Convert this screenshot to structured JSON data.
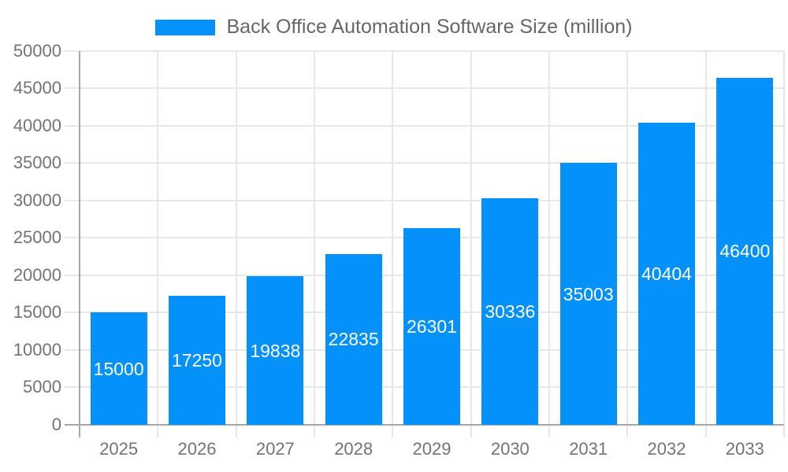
{
  "legend": {
    "label": "Back Office Automation Software Size (million)"
  },
  "chart_data": {
    "type": "bar",
    "title": "Back Office Automation Software Size (million)",
    "categories": [
      "2025",
      "2026",
      "2027",
      "2028",
      "2029",
      "2030",
      "2031",
      "2032",
      "2033"
    ],
    "values": [
      15000,
      17250,
      19838,
      22835,
      26301,
      30336,
      35003,
      40404,
      46400
    ],
    "series": [
      {
        "name": "Back Office Automation Software Size (million)",
        "values": [
          15000,
          17250,
          19838,
          22835,
          26301,
          30336,
          35003,
          40404,
          46400
        ]
      }
    ],
    "xlabel": "",
    "ylabel": "",
    "ylim": [
      0,
      50000
    ],
    "ytick_step": 5000,
    "ytick_labels": [
      "0",
      "5000",
      "10000",
      "15000",
      "20000",
      "25000",
      "30000",
      "35000",
      "40000",
      "45000",
      "50000"
    ],
    "grid": true,
    "legend_position": "top",
    "value_label_position": "inside-center"
  },
  "colors": {
    "bar": "#0591fa",
    "grid": "#e7e7e7",
    "axis_border": "#a6a6a6",
    "tick_text": "#737373",
    "legend_text": "#666666",
    "bar_label": "#ffffff",
    "background": "#ffffff"
  }
}
